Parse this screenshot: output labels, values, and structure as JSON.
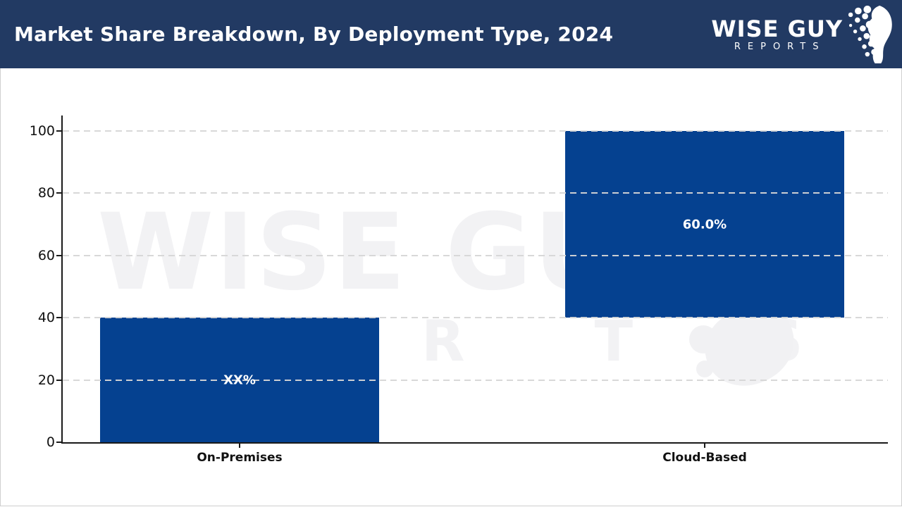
{
  "header": {
    "title": "Market Share Breakdown, By Deployment Type, 2024",
    "bg_color": "#223a63",
    "logo": {
      "line1": "WISE GUY",
      "line2": "REPORTS"
    }
  },
  "watermark": {
    "line1": "WISE GUY",
    "line2": "R T S"
  },
  "chart_data": {
    "type": "bar",
    "title": "Market Share Breakdown, By Deployment Type, 2024",
    "categories": [
      "On-Premises",
      "Cloud-Based"
    ],
    "bars": [
      {
        "category": "On-Premises",
        "start": 0,
        "end": 40,
        "label": "XX%"
      },
      {
        "category": "Cloud-Based",
        "start": 40,
        "end": 100,
        "label": "60.0%"
      }
    ],
    "yticks": [
      0,
      20,
      40,
      60,
      80,
      100
    ],
    "ylim": [
      0,
      105
    ],
    "bar_color": "#054190",
    "grid": true,
    "grid_style": "dashed",
    "grid_color": "#d9d9d9",
    "legend": "none",
    "xlabel": "",
    "ylabel": ""
  }
}
